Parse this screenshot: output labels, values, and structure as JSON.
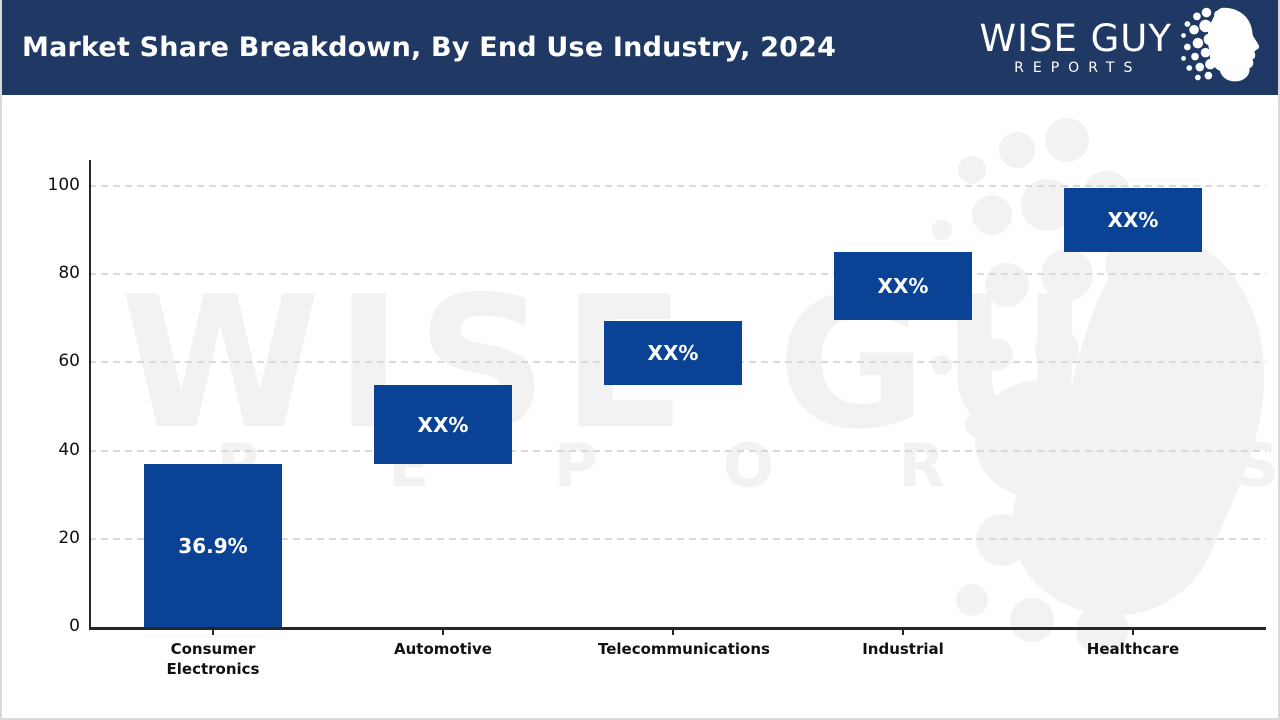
{
  "header": {
    "title": "Market Share Breakdown, By End Use Industry, 2024",
    "logo": {
      "line1": "WISE GUY",
      "line2": "REPORTS"
    }
  },
  "watermark": {
    "line1": "WISE GUY",
    "line2": "R E P O R T S"
  },
  "chart_data": {
    "type": "bar",
    "subtype": "waterfall",
    "title": "Market Share Breakdown, By End Use Industry, 2024",
    "categories": [
      "Consumer Electronics",
      "Automotive",
      "Telecommunications",
      "Industrial",
      "Healthcare"
    ],
    "bars": [
      {
        "category": "Consumer Electronics",
        "start": 0,
        "end": 36.9,
        "label": "36.9%"
      },
      {
        "category": "Automotive",
        "start": 36.9,
        "end": 54.8,
        "label": "XX%"
      },
      {
        "category": "Telecommunications",
        "start": 54.8,
        "end": 69.5,
        "label": "XX%"
      },
      {
        "category": "Industrial",
        "start": 69.5,
        "end": 85.0,
        "label": "XX%"
      },
      {
        "category": "Healthcare",
        "start": 85.0,
        "end": 99.6,
        "label": "XX%"
      }
    ],
    "xlabel": "",
    "ylabel": "",
    "ylim": [
      0,
      100
    ],
    "yticks": [
      0,
      20,
      40,
      60,
      80,
      100
    ],
    "grid": "horizontal dashed",
    "legend": "none",
    "bar_color": "#0a4296",
    "bar_label_color": "#ffffff"
  },
  "colors": {
    "header_bg": "#1f3864",
    "bar": "#0a4296",
    "axis": "#262626",
    "gridline": "#d9d9d9",
    "watermark": "#f2f2f2"
  }
}
